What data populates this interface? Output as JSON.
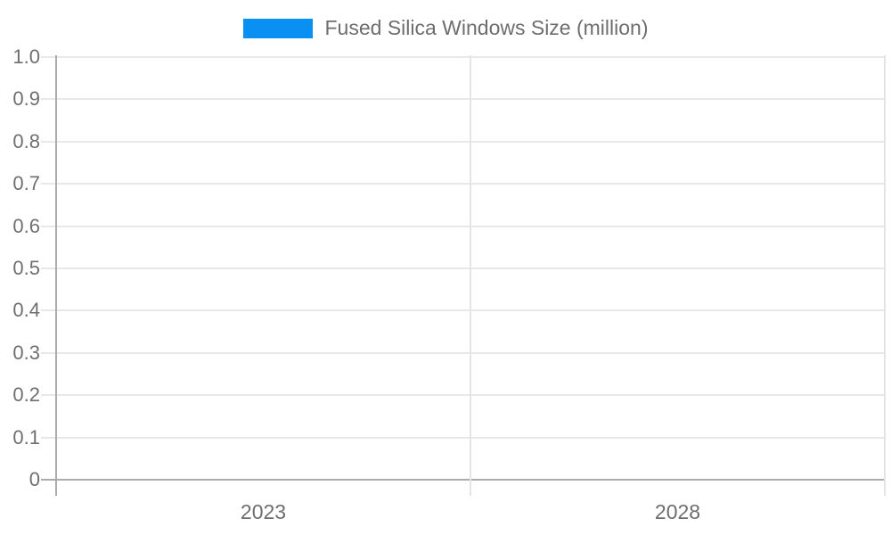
{
  "chart_data": {
    "type": "bar",
    "title": "",
    "xlabel": "",
    "ylabel": "",
    "legend": {
      "label": "Fused Silica Windows Size (million)",
      "swatch_color": "#0a8ff2",
      "position": "top-center"
    },
    "categories": [
      "2023",
      "2028"
    ],
    "series": [
      {
        "name": "Fused Silica Windows Size (million)",
        "color": "#0a8ff2",
        "values": [
          null,
          null
        ]
      }
    ],
    "ylim": [
      0,
      1.0
    ],
    "yticks": [
      "0",
      "0.1",
      "0.2",
      "0.3",
      "0.4",
      "0.5",
      "0.6",
      "0.7",
      "0.8",
      "0.9",
      "1.0"
    ],
    "grid": "on"
  }
}
